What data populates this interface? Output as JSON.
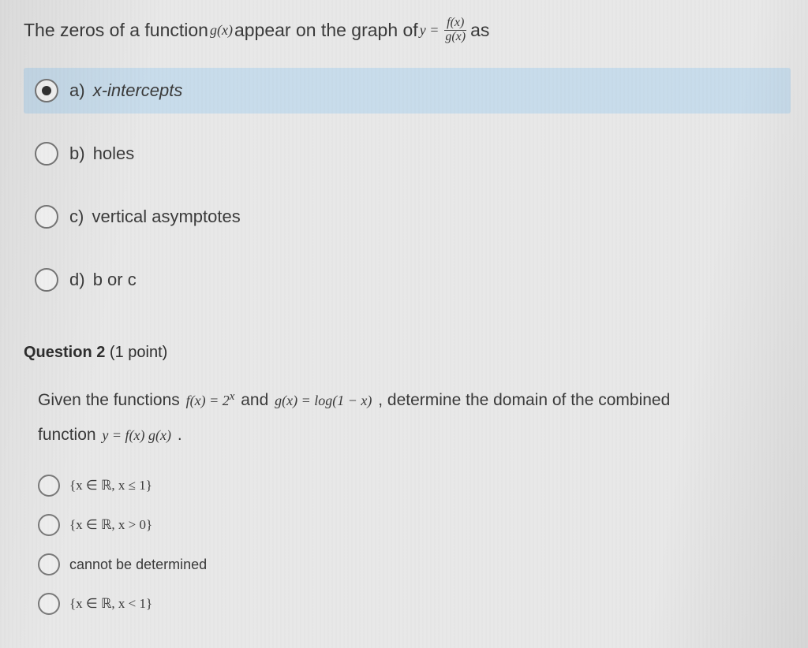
{
  "q1": {
    "stem_pre": "The zeros of a function ",
    "stem_gx": "g(x)",
    "stem_mid": " appear on the graph of ",
    "stem_yeq": "y = ",
    "frac_num": "f(x)",
    "frac_den": "g(x)",
    "stem_post": " as",
    "options": [
      {
        "letter": "a)",
        "text": "x-intercepts",
        "italic_first": true,
        "selected": true
      },
      {
        "letter": "b)",
        "text": "holes",
        "italic_first": false,
        "selected": false
      },
      {
        "letter": "c)",
        "text": "vertical asymptotes",
        "italic_first": false,
        "selected": false
      },
      {
        "letter": "d)",
        "text": "b or c",
        "italic_first": false,
        "selected": false
      }
    ]
  },
  "q2": {
    "header_bold": "Question 2",
    "header_rest": " (1 point)",
    "stem_1": "Given the functions ",
    "fx": "f(x) = 2",
    "fx_exp": "x",
    "stem_2": " and ",
    "gx": "g(x) = log(1 − x)",
    "stem_3": ", determine the domain of the combined",
    "stem_4": "function ",
    "yfg": "y = f(x) g(x)",
    "stem_5": ".",
    "options": [
      {
        "label": "{x ∈ ℝ, x ≤ 1}",
        "math": true
      },
      {
        "label": "{x ∈ ℝ, x > 0}",
        "math": true
      },
      {
        "label": "cannot be determined",
        "math": false
      },
      {
        "label": "{x ∈ ℝ, x < 1}",
        "math": true
      }
    ]
  },
  "style": {
    "bg": "#e8e8e8",
    "highlight": "#c8dceb",
    "text": "#3a3a3a",
    "radio_border": "#777777",
    "stem_fontsize": 23,
    "option_fontsize": 22,
    "q2_option_fontsize": 18
  }
}
